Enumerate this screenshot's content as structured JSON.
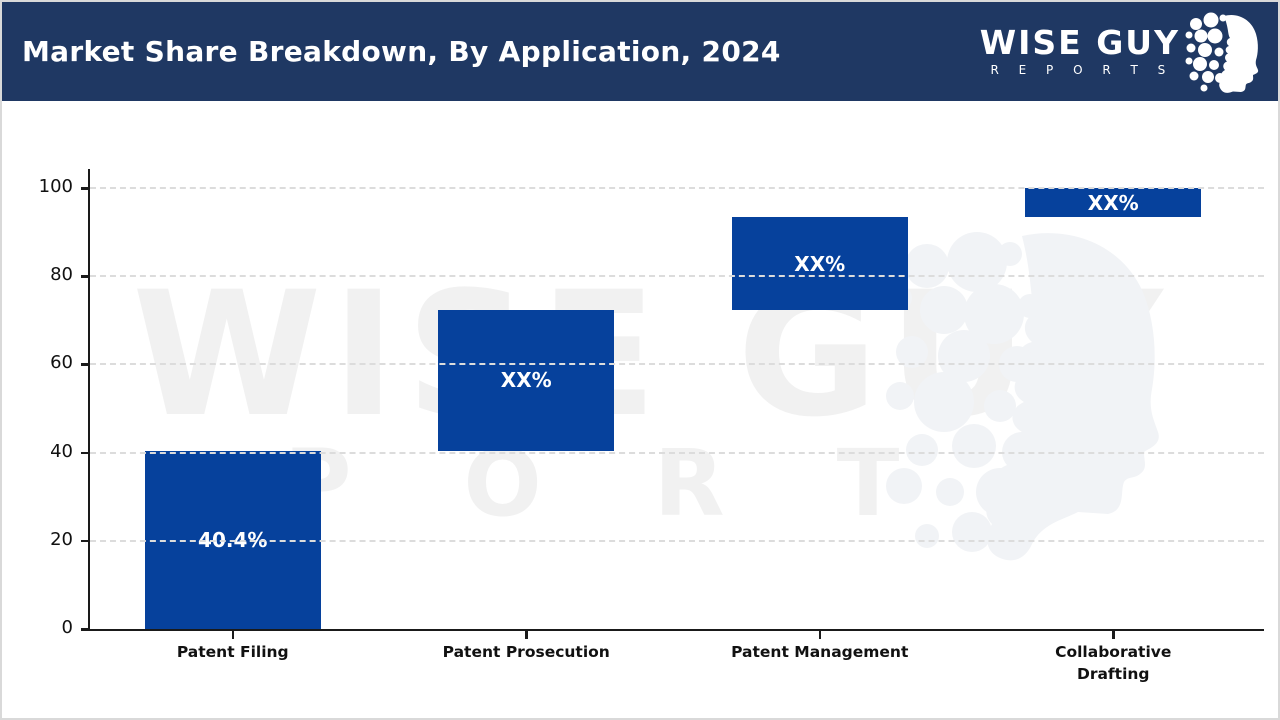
{
  "header": {
    "title": "Market Share Breakdown, By Application, 2024",
    "logo": {
      "wordmark": "WISE GUY",
      "subtext": "R E P O R T S"
    }
  },
  "watermark": {
    "line1": "WISE GUY",
    "line2": "P O R T S"
  },
  "colors": {
    "header_bg": "#1F3863",
    "bar": "#06419C",
    "grid": "#DCDCDC",
    "axis": "#1A1A1A",
    "bar_label": "#FFFFFF",
    "watermark": "#F1F1F1"
  },
  "chart_data": {
    "type": "waterfall",
    "title": "Market Share Breakdown, By Application, 2024",
    "categories": [
      "Patent Filing",
      "Patent Prosecution",
      "Patent Management",
      "Collaborative\nDrafting"
    ],
    "segments": [
      {
        "category": "Patent Filing",
        "start": 0,
        "end": 40.4,
        "label": "40.4%"
      },
      {
        "category": "Patent Prosecution",
        "start": 40.4,
        "end": 72.3,
        "label": "XX%"
      },
      {
        "category": "Patent Management",
        "start": 72.3,
        "end": 93.4,
        "label": "XX%"
      },
      {
        "category": "Collaborative Drafting",
        "start": 93.4,
        "end": 100,
        "label": "XX%"
      }
    ],
    "xlabel": "",
    "ylabel": "",
    "ylim": [
      0,
      100
    ],
    "yticks": [
      0,
      20,
      40,
      60,
      80,
      100
    ],
    "grid": "horizontal-dashed",
    "legend": "none"
  }
}
